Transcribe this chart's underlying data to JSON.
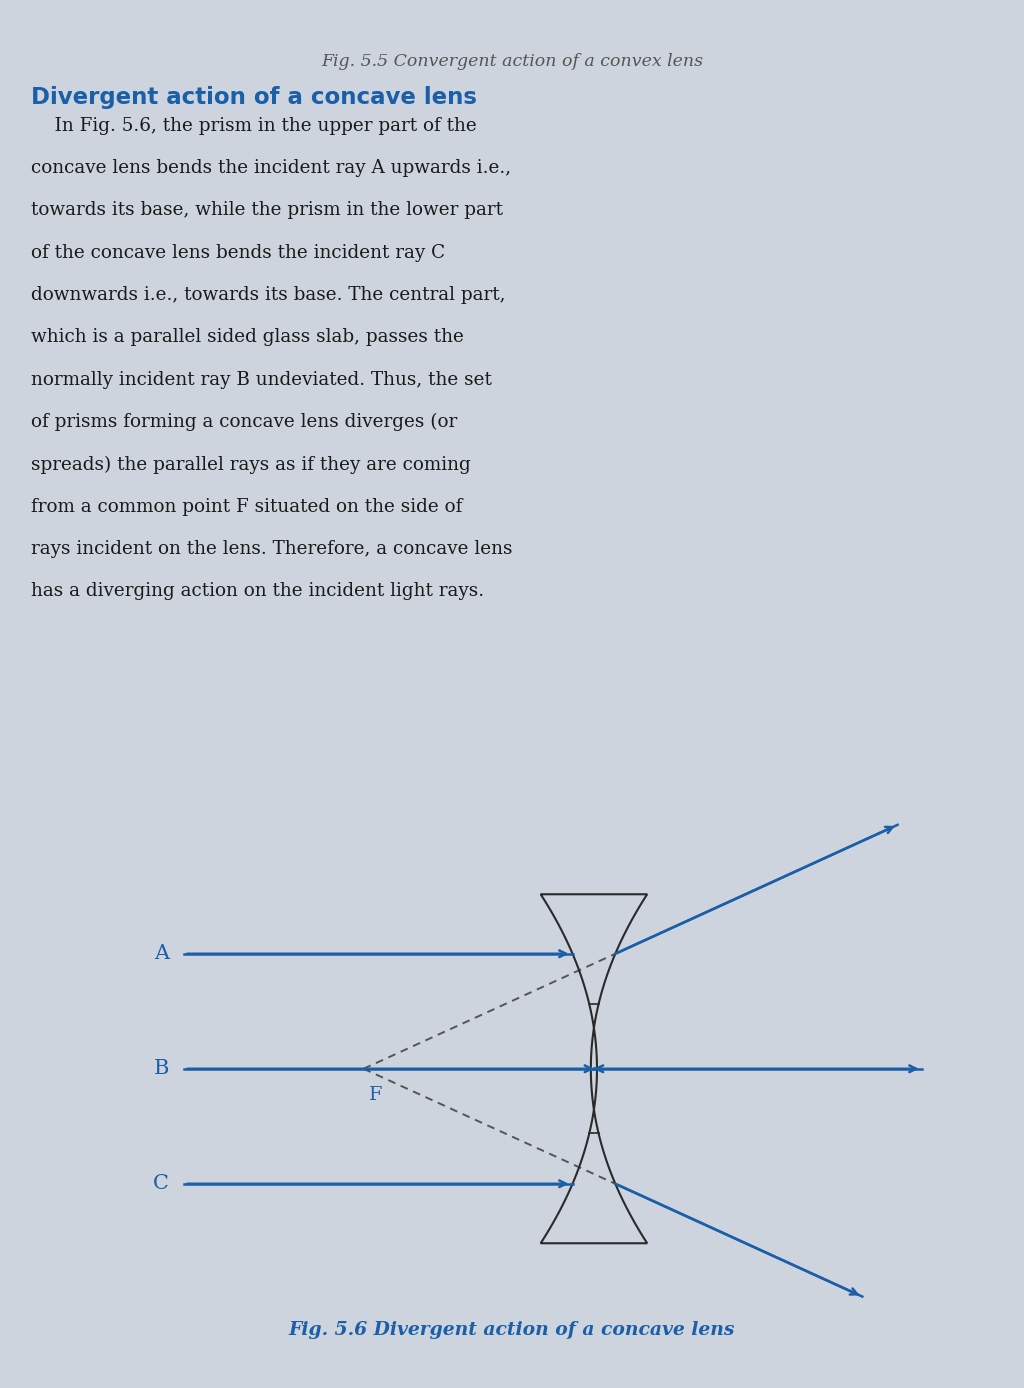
{
  "bg_color": "#cdd4de",
  "fig_caption_top": "Fig. 5.5 Convergent action of a convex lens",
  "section_title": "Divergent action of a concave lens",
  "body_text_lines": [
    "    In Fig. 5.6, the prism in the upper part of the",
    "concave lens bends the incident ray A upwards i.e.,",
    "towards its base, while the prism in the lower part",
    "of the concave lens bends the incident ray C",
    "downwards i.e., towards its base. The central part,",
    "which is a parallel sided glass slab, passes the",
    "normally incident ray B undeviated. Thus, the set",
    "of prisms forming a concave lens diverges (or",
    "spreads) the parallel rays as if they are coming",
    "from a common point F situated on the side of",
    "rays incident on the lens. Therefore, a concave lens",
    "has a diverging action on the incident light rays."
  ],
  "fig_caption_bottom": "Fig. 5.6 Divergent action of a concave lens",
  "ray_color": "#1a5fa8",
  "lens_color": "#2a2a2a",
  "dashed_color": "#555555",
  "label_color": "#1a5fa8",
  "text_color": "#1a1a1a",
  "title_color": "#1a5fa8",
  "caption_color": "#555555"
}
